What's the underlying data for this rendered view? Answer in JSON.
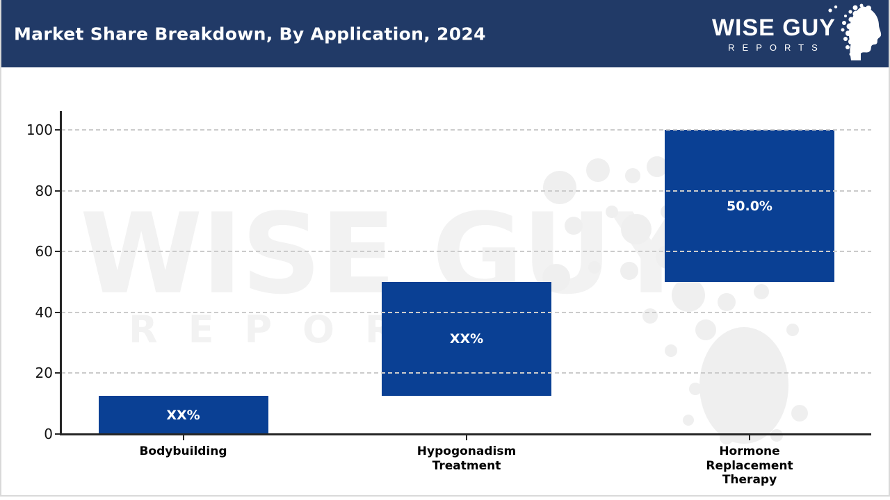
{
  "header": {
    "title": "Market Share Breakdown, By Application, 2024",
    "logo": {
      "line1": "WISE GUY",
      "line2": "REPORTS"
    }
  },
  "watermark": {
    "line1": "WISE GUY",
    "line2": "REPORTS"
  },
  "colors": {
    "header_bg": "#213a67",
    "bar": "#0a4094",
    "axis": "#262626",
    "gridline": "#cbcbcb",
    "value_label": "#ffffff",
    "watermark": "#f2f2f2"
  },
  "chart_data": {
    "type": "bar",
    "subtype": "waterfall-breakdown",
    "title": "Market Share Breakdown, By Application, 2024",
    "categories": [
      "Bodybuilding",
      "Hypogonadism Treatment",
      "Hormone Replacement Therapy"
    ],
    "category_label_lines": [
      [
        "Bodybuilding"
      ],
      [
        "Hypogonadism",
        "Treatment"
      ],
      [
        "Hormone",
        "Replacement",
        "Therapy"
      ]
    ],
    "segments": [
      {
        "category": "Bodybuilding",
        "start": 0,
        "end": 12.5,
        "value_label": "XX%"
      },
      {
        "category": "Hypogonadism Treatment",
        "start": 12.5,
        "end": 50,
        "value_label": "XX%"
      },
      {
        "category": "Hormone Replacement Therapy",
        "start": 50,
        "end": 100,
        "value_label": "50.0%"
      }
    ],
    "yticks": [
      0,
      20,
      40,
      60,
      80,
      100
    ],
    "ylim": [
      0,
      106
    ],
    "xlabel": "",
    "ylabel": "",
    "grid": {
      "axis": "y",
      "style": "dashed",
      "above_bars": true
    },
    "legend": null
  }
}
